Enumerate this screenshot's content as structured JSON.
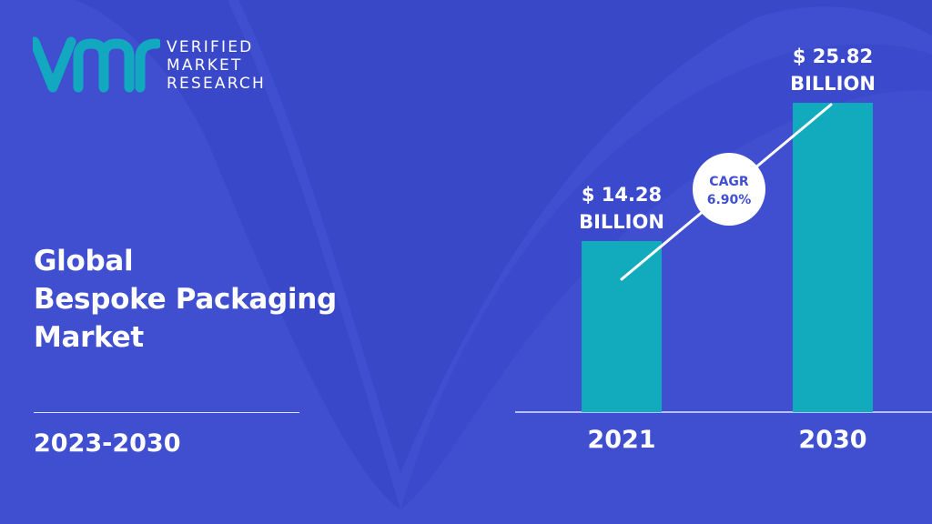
{
  "logo": {
    "lines": [
      "VERIFIED",
      "MARKET",
      "RESEARCH"
    ]
  },
  "title_lines": [
    "Global",
    "Bespoke Packaging",
    "Market"
  ],
  "period": "2023-2030",
  "colors": {
    "background": "#3f4fd0",
    "accent": "#12a8c0",
    "bar": "#12aabd",
    "text": "#ffffff",
    "cagr_text": "#3f4fd0"
  },
  "chart_data": {
    "type": "bar",
    "categories": [
      "2021",
      "2030"
    ],
    "values": [
      14.28,
      25.82
    ],
    "value_labels": [
      [
        "$ 14.28",
        "BILLION"
      ],
      [
        "$ 25.82",
        "BILLION"
      ]
    ],
    "annotation": {
      "lines": [
        "CAGR",
        "6.90%"
      ]
    },
    "grid": false,
    "legend": "none"
  }
}
